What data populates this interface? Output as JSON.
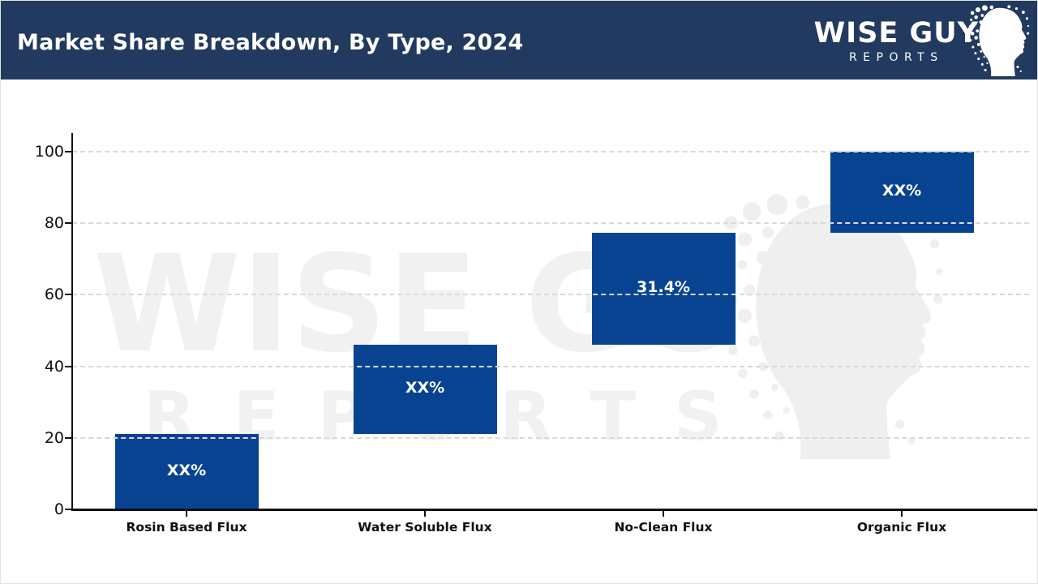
{
  "header": {
    "title": "Market Share Breakdown, By Type, 2024",
    "logo": {
      "line1": "WISE GUY",
      "line2": "REPORTS"
    }
  },
  "watermark": {
    "line1": "WISE GU",
    "line2": "R E P O R T S"
  },
  "chart_data": {
    "type": "bar",
    "subtype": "waterfall-floating-bars",
    "title": "Market Share Breakdown, By Type, 2024",
    "xlabel": "",
    "ylabel": "",
    "categories": [
      "Rosin Based Flux",
      "Water Soluble Flux",
      "No-Clean Flux",
      "Organic Flux"
    ],
    "segments": [
      {
        "category": "Rosin Based Flux",
        "start": 0,
        "end": 21,
        "label": "XX%"
      },
      {
        "category": "Water Soluble Flux",
        "start": 21,
        "end": 46,
        "label": "XX%"
      },
      {
        "category": "No-Clean Flux",
        "start": 46,
        "end": 77.4,
        "label": "31.4%"
      },
      {
        "category": "Organic Flux",
        "start": 77.4,
        "end": 100,
        "label": "XX%"
      }
    ],
    "ylim": [
      0,
      105
    ],
    "yticks": [
      0,
      20,
      40,
      60,
      80,
      100
    ],
    "grid": "horizontal-dashed",
    "legend": "none",
    "bar_color": "#074391",
    "axis_color": "#111111",
    "gridline_color": "#d9d9d9"
  }
}
